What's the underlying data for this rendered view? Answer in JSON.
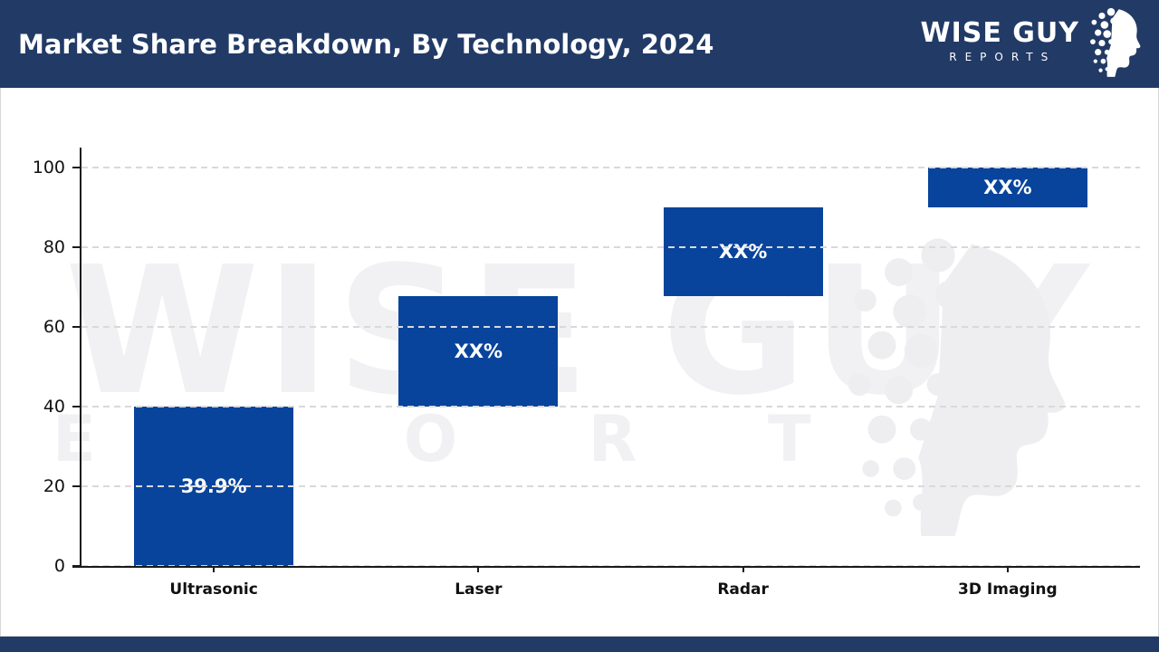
{
  "header": {
    "title": "Market Share Breakdown, By Technology, 2024",
    "logo_line1": "WISE GUY",
    "logo_line2": "REPORTS"
  },
  "watermark": {
    "line1": "WISE GUY",
    "line2": "R E P O R T S"
  },
  "colors": {
    "brand_navy": "#223a66",
    "bar_blue": "#08449c"
  },
  "chart_data": {
    "type": "bar",
    "variant": "waterfall",
    "title": "Market Share Breakdown, By Technology, 2024",
    "categories": [
      "Ultrasonic",
      "Laser",
      "Radar",
      "3D Imaging"
    ],
    "segments": [
      {
        "category": "Ultrasonic",
        "start": 0,
        "end": 39.9,
        "label": "39.9%"
      },
      {
        "category": "Laser",
        "start": 39.9,
        "end": 67.7,
        "label": "XX%"
      },
      {
        "category": "Radar",
        "start": 67.7,
        "end": 90.0,
        "label": "XX%"
      },
      {
        "category": "3D Imaging",
        "start": 90.0,
        "end": 100.0,
        "label": "XX%"
      }
    ],
    "ylabel": "",
    "xlabel": "",
    "yticks": [
      0,
      20,
      40,
      60,
      80,
      100
    ],
    "ylim": [
      0,
      105
    ],
    "grid": {
      "axis": "y",
      "style": "dashed",
      "color": "#d9d9d9"
    },
    "legend": null,
    "colors": {
      "bar": "#08449c",
      "bar_label": "#ffffff",
      "axis": "#1a1a1a",
      "tick_label": "#111111"
    }
  }
}
